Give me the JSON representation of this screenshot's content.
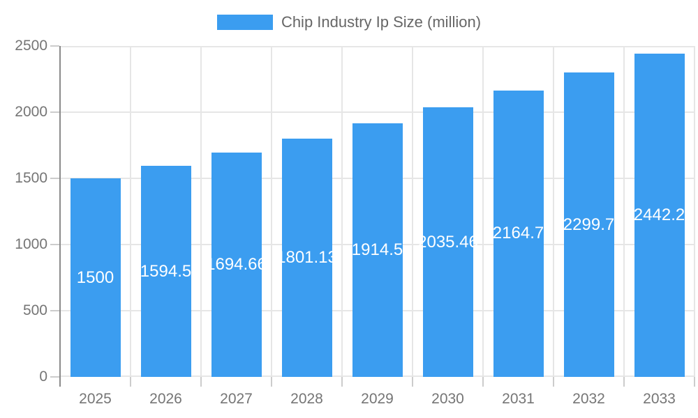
{
  "legend": {
    "label": "Chip Industry Ip Size (million)"
  },
  "chart_data": {
    "type": "bar",
    "title": "Chip Industry Ip Size (million)",
    "categories": [
      "2025",
      "2026",
      "2027",
      "2028",
      "2029",
      "2030",
      "2031",
      "2032",
      "2033"
    ],
    "values": [
      1500,
      1594.5,
      1694.66,
      1801.13,
      1914.5,
      2035.46,
      2164.7,
      2299.7,
      2442.2
    ],
    "value_labels": [
      "1500",
      "1594.5",
      "1694.66",
      "1801.13",
      "1914.5",
      "2035.46",
      "2164.7",
      "2299.7",
      "2442.2"
    ],
    "xlabel": "",
    "ylabel": "",
    "ylim": [
      0,
      2500
    ],
    "y_ticks": [
      0,
      500,
      1000,
      1500,
      2000,
      2500
    ],
    "y_tick_labels": [
      "0",
      "500",
      "1000",
      "1500",
      "2000",
      "2500"
    ],
    "grid": true,
    "legend_position": "top-center",
    "colors": {
      "bar": "#3b9df0",
      "grid": "#e6e6e6",
      "axis": "#8a8a8a",
      "tick_mark": "#cccccc",
      "tick_text": "#757575",
      "legend_text": "#666666",
      "value_label_text": "#ffffff",
      "background": "#ffffff"
    }
  }
}
